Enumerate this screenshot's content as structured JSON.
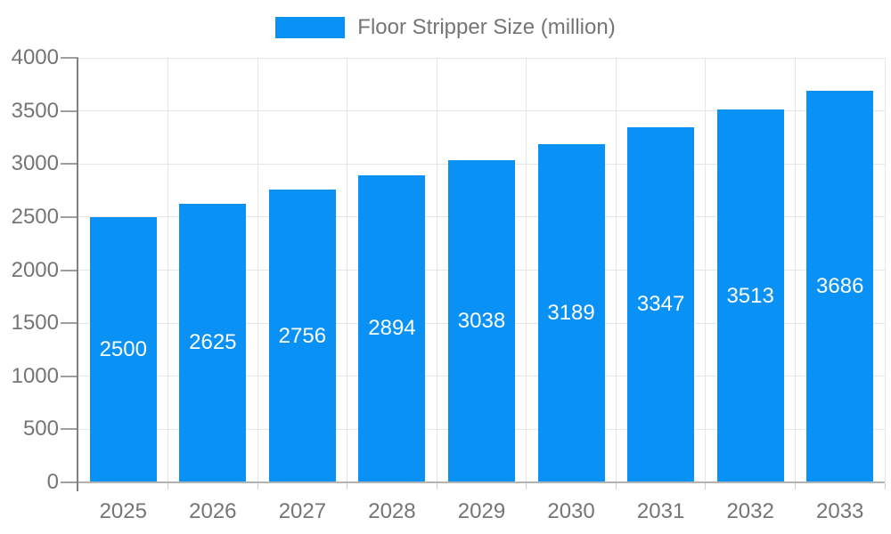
{
  "legend": {
    "label": "Floor Stripper Size (million)"
  },
  "chart_data": {
    "type": "bar",
    "title": "",
    "categories": [
      "2025",
      "2026",
      "2027",
      "2028",
      "2029",
      "2030",
      "2031",
      "2032",
      "2033"
    ],
    "series": [
      {
        "name": "Floor Stripper Size (million)",
        "values": [
          2500,
          2625,
          2756,
          2894,
          3038,
          3189,
          3347,
          3513,
          3686
        ]
      }
    ],
    "xlabel": "",
    "ylabel": "",
    "ylim": [
      0,
      4000
    ],
    "yticks": [
      0,
      500,
      1000,
      1500,
      2000,
      2500,
      3000,
      3500,
      4000
    ],
    "grid": true,
    "legend_position": "top-center",
    "bar_value_labels_inside": true,
    "colors": {
      "bar": "#0991f5",
      "bar_label": "#ffffff",
      "axis_text": "#757575",
      "legend_text": "#757575",
      "gridline": "#e6e6e6",
      "axis_line": "#808080",
      "baseline": "#b3b3b3",
      "tick": "#9e9e9e",
      "minor_tick": "#cccccc",
      "background": "#ffffff"
    }
  }
}
